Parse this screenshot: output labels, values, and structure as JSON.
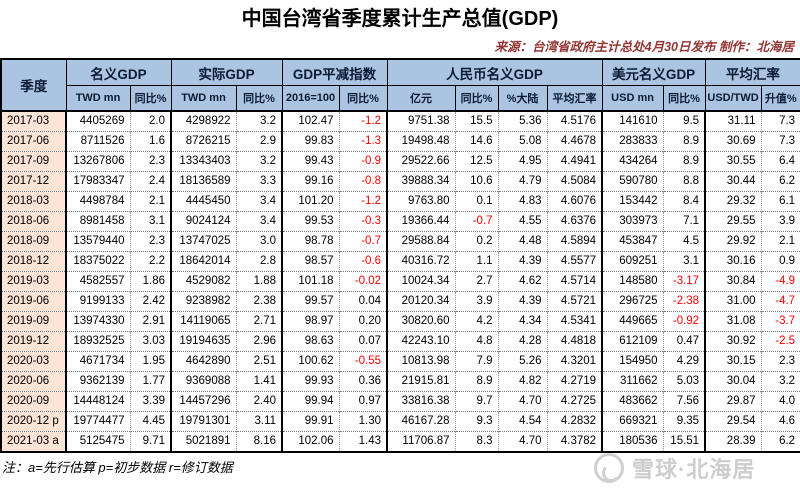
{
  "title": "中国台湾省季度累计生产总值(GDP)",
  "source_note": "来源：台湾省政府主计总处4月30日发布 制作：北海居",
  "footnote": "注：a=先行估算 p=初步数据 r=修订数据",
  "watermark_text": "雪球·北海居",
  "colors": {
    "header_bg": "#aac4e1",
    "quarter_col_bg": "#fce4d6",
    "negative_value": "#ff0000",
    "source_text": "#943634",
    "watermark": "#c8c8c8"
  },
  "chart_data": {
    "type": "table",
    "title": "中国台湾省季度累计生产总值(GDP)",
    "column_groups": [
      {
        "label": "季度",
        "span": 1
      },
      {
        "label": "名义GDP",
        "span": 2
      },
      {
        "label": "实际GDP",
        "span": 2
      },
      {
        "label": "GDP平减指数",
        "span": 2
      },
      {
        "label": "人民币名义GDP",
        "span": 4
      },
      {
        "label": "美元名义GDP",
        "span": 2
      },
      {
        "label": "平均汇率",
        "span": 2
      }
    ],
    "sub_columns": [
      "TWD mn",
      "同比%",
      "TWD mn",
      "同比%",
      "2016=100",
      "同比%",
      "亿元",
      "同比%",
      "%大陆",
      "平均汇率",
      "USD mn",
      "同比%",
      "USD/TWD",
      "升值%"
    ],
    "rows": [
      [
        "2017-03",
        "4405269",
        "2.0",
        "4298922",
        "3.2",
        "102.47",
        "-1.2",
        "9751.38",
        "15.5",
        "5.36",
        "4.5176",
        "141610",
        "9.5",
        "31.11",
        "7.3"
      ],
      [
        "2017-06",
        "8711526",
        "1.6",
        "8726215",
        "2.9",
        "99.83",
        "-1.3",
        "19498.48",
        "14.6",
        "5.08",
        "4.4678",
        "283833",
        "8.9",
        "30.69",
        "7.3"
      ],
      [
        "2017-09",
        "13267806",
        "2.3",
        "13343403",
        "3.2",
        "99.43",
        "-0.9",
        "29522.66",
        "12.5",
        "4.95",
        "4.4941",
        "434264",
        "8.9",
        "30.55",
        "6.4"
      ],
      [
        "2017-12",
        "17983347",
        "2.4",
        "18136589",
        "3.3",
        "99.16",
        "-0.8",
        "39888.34",
        "10.6",
        "4.79",
        "4.5084",
        "590780",
        "8.8",
        "30.44",
        "6.2"
      ],
      [
        "2018-03",
        "4498784",
        "2.1",
        "4445450",
        "3.4",
        "101.20",
        "-1.2",
        "9763.80",
        "0.1",
        "4.83",
        "4.6076",
        "153442",
        "8.4",
        "29.32",
        "6.1"
      ],
      [
        "2018-06",
        "8981458",
        "3.1",
        "9024124",
        "3.4",
        "99.53",
        "-0.3",
        "19366.44",
        "-0.7",
        "4.55",
        "4.6376",
        "303973",
        "7.1",
        "29.55",
        "3.9"
      ],
      [
        "2018-09",
        "13579440",
        "2.3",
        "13747025",
        "3.0",
        "98.78",
        "-0.7",
        "29588.84",
        "0.2",
        "4.48",
        "4.5894",
        "453847",
        "4.5",
        "29.92",
        "2.1"
      ],
      [
        "2018-12",
        "18375022",
        "2.2",
        "18642014",
        "2.8",
        "98.57",
        "-0.6",
        "40316.72",
        "1.1",
        "4.39",
        "4.5577",
        "609251",
        "3.1",
        "30.16",
        "0.9"
      ],
      [
        "2019-03",
        "4582557",
        "1.86",
        "4529082",
        "1.88",
        "101.18",
        "-0.02",
        "10024.34",
        "2.7",
        "4.62",
        "4.5714",
        "148580",
        "-3.17",
        "30.84",
        "-4.9"
      ],
      [
        "2019-06",
        "9199133",
        "2.42",
        "9238982",
        "2.38",
        "99.57",
        "0.04",
        "20120.34",
        "3.9",
        "4.39",
        "4.5721",
        "296725",
        "-2.38",
        "31.00",
        "-4.7"
      ],
      [
        "2019-09",
        "13974330",
        "2.91",
        "14119065",
        "2.71",
        "98.97",
        "0.20",
        "30820.60",
        "4.2",
        "4.34",
        "4.5341",
        "449665",
        "-0.92",
        "31.08",
        "-3.7"
      ],
      [
        "2019-12",
        "18932525",
        "3.03",
        "19194635",
        "2.96",
        "98.63",
        "0.07",
        "42243.10",
        "4.8",
        "4.28",
        "4.4818",
        "612109",
        "0.47",
        "30.92",
        "-2.5"
      ],
      [
        "2020-03",
        "4671734",
        "1.95",
        "4642890",
        "2.51",
        "100.62",
        "-0.55",
        "10813.98",
        "7.9",
        "5.26",
        "4.3201",
        "154950",
        "4.29",
        "30.15",
        "2.3"
      ],
      [
        "2020-06",
        "9362139",
        "1.77",
        "9369088",
        "1.41",
        "99.93",
        "0.36",
        "21915.81",
        "8.9",
        "4.82",
        "4.2719",
        "311662",
        "5.03",
        "30.04",
        "3.2"
      ],
      [
        "2020-09",
        "14448124",
        "3.39",
        "14457296",
        "2.40",
        "99.94",
        "0.97",
        "33816.38",
        "9.7",
        "4.70",
        "4.2725",
        "483662",
        "7.56",
        "29.87",
        "4.0"
      ],
      [
        "2020-12 p",
        "19774477",
        "4.45",
        "19791301",
        "3.11",
        "99.91",
        "1.30",
        "46167.28",
        "9.3",
        "4.54",
        "4.2832",
        "669321",
        "9.35",
        "29.54",
        "4.6"
      ],
      [
        "2021-03 a",
        "5125475",
        "9.71",
        "5021891",
        "8.16",
        "102.06",
        "1.43",
        "11706.87",
        "8.3",
        "4.70",
        "4.3782",
        "180536",
        "15.51",
        "28.39",
        "6.2"
      ]
    ]
  }
}
